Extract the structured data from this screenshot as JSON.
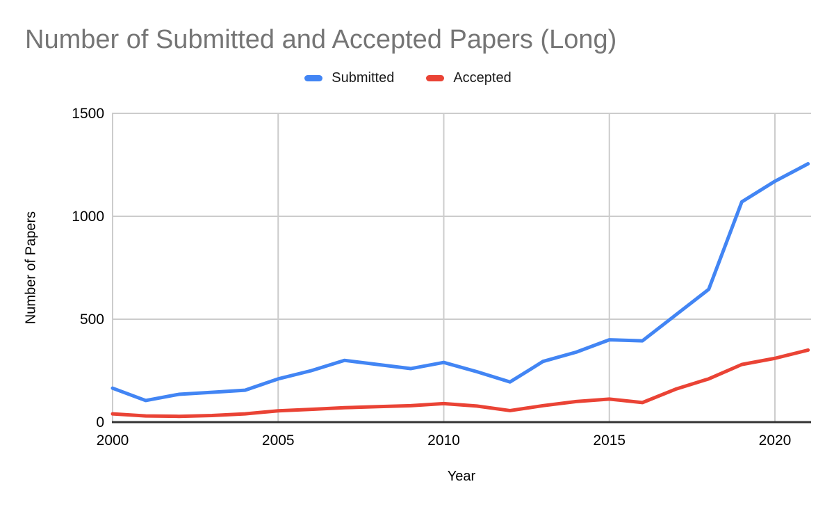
{
  "page": {
    "background": "#ffffff"
  },
  "header": {
    "title": "Number of Submitted and Accepted Papers (Long)",
    "title_color": "#757575"
  },
  "legend": {
    "items": [
      {
        "label": "Submitted",
        "color": "#4285f4"
      },
      {
        "label": "Accepted",
        "color": "#ea4335"
      }
    ]
  },
  "axes": {
    "y_title": "Number of Papers",
    "x_title": "Year",
    "y_ticks": [
      0,
      500,
      1000,
      1500
    ],
    "x_ticks": [
      2000,
      2005,
      2010,
      2015,
      2020
    ],
    "grid_color": "#cccccc",
    "axis_line_color": "#333333",
    "tick_label_color": "#000000"
  },
  "chart_data": {
    "type": "line",
    "title": "Number of Submitted and Accepted Papers (Long)",
    "xlabel": "Year",
    "ylabel": "Number of Papers",
    "x": [
      2000,
      2001,
      2002,
      2003,
      2004,
      2005,
      2006,
      2007,
      2008,
      2009,
      2010,
      2011,
      2012,
      2013,
      2014,
      2015,
      2016,
      2017,
      2018,
      2019,
      2020,
      2021
    ],
    "series": [
      {
        "name": "Submitted",
        "color": "#4285f4",
        "values": [
          165,
          105,
          135,
          145,
          155,
          210,
          250,
          300,
          280,
          260,
          290,
          245,
          195,
          295,
          340,
          400,
          395,
          520,
          645,
          1070,
          1170,
          1255
        ]
      },
      {
        "name": "Accepted",
        "color": "#ea4335",
        "values": [
          40,
          30,
          28,
          32,
          40,
          55,
          62,
          70,
          75,
          80,
          90,
          78,
          56,
          80,
          100,
          112,
          95,
          160,
          210,
          280,
          310,
          350
        ]
      }
    ],
    "xlim": [
      2000,
      2021
    ],
    "ylim": [
      0,
      1500
    ],
    "grid": true,
    "legend_position": "top"
  }
}
